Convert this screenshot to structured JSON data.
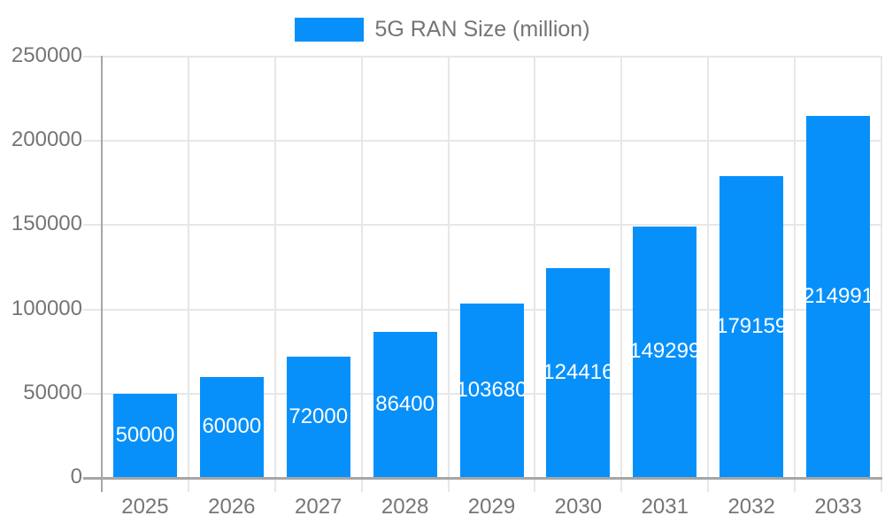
{
  "chart_data": {
    "type": "bar",
    "legend": {
      "label": "5G RAN Size (million)",
      "position": "top-center"
    },
    "categories": [
      "2025",
      "2026",
      "2027",
      "2028",
      "2029",
      "2030",
      "2031",
      "2032",
      "2033"
    ],
    "series": [
      {
        "name": "5G RAN Size (million)",
        "values": [
          50000,
          60000,
          72000,
          86400,
          103680,
          124416,
          149299,
          179159,
          214991
        ],
        "color": "#0890fa"
      }
    ],
    "value_labels_shown": true,
    "ylim": [
      0,
      250000
    ],
    "yticks": [
      0,
      50000,
      100000,
      150000,
      200000,
      250000
    ],
    "grid": true,
    "legend_swatch_color": "#0890fa",
    "colors": {
      "bar": "#0890fa",
      "axis_line": "#a6a6a6",
      "gridline": "#e7e7e7",
      "tick_label": "#757575",
      "legend_text": "#757575",
      "bar_value_label": "#ffffff",
      "background": "#ffffff"
    }
  }
}
